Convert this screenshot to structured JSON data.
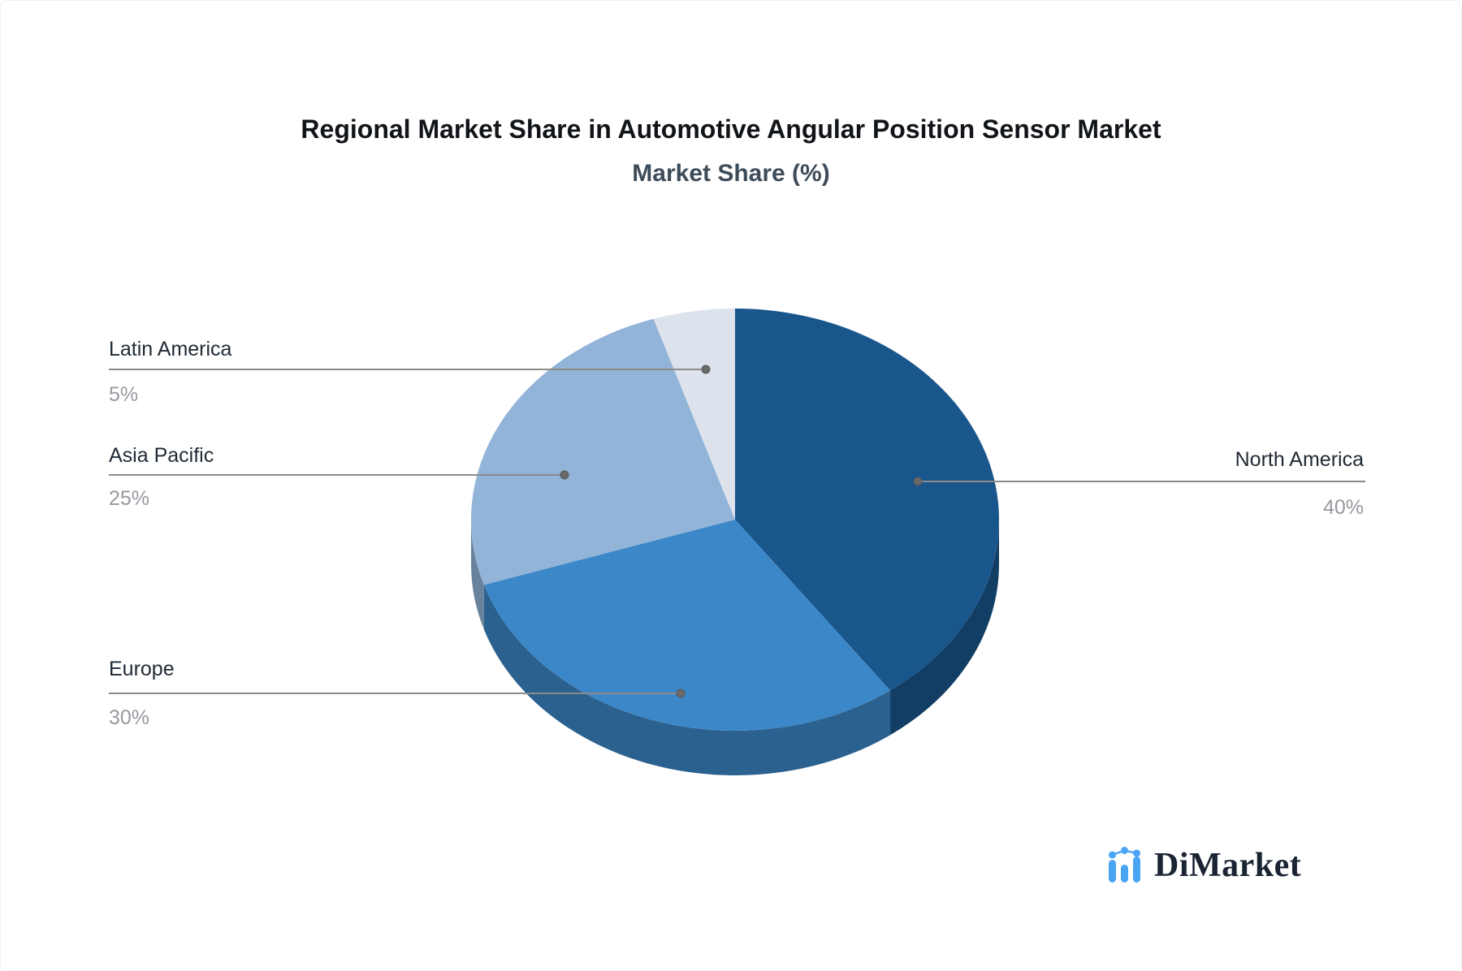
{
  "header": {
    "title": "Regional Market Share in Automotive Angular Position Sensor Market",
    "subtitle": "Market Share (%)"
  },
  "chart_data": {
    "type": "pie",
    "title": "Regional Market Share in Automotive Angular Position Sensor Market",
    "subtitle": "Market Share (%)",
    "unit": "percent",
    "style": "3d",
    "start_angle_deg": 90,
    "direction": "clockwise",
    "legend_position": "callout-labels",
    "slices": [
      {
        "label": "North America",
        "value": 40,
        "display": "40%",
        "color": "#19568C"
      },
      {
        "label": "Europe",
        "value": 30,
        "display": "30%",
        "color": "#3C87C7"
      },
      {
        "label": "Asia Pacific",
        "value": 25,
        "display": "25%",
        "color": "#92B4D8"
      },
      {
        "label": "Latin America",
        "value": 5,
        "display": "5%",
        "color": "#DDE3ED"
      }
    ]
  },
  "branding": {
    "logo_text": "DiMarket",
    "logo_icon": "bar-line-chart-icon",
    "logo_icon_color": "#4AA4F4",
    "logo_text_color": "#1B2433"
  },
  "style": {
    "leader_line_color": "#8B8B8B",
    "leader_dot_color": "#6A6A6A",
    "label_color": "#212B36",
    "percent_color": "#95999F",
    "title_color": "#111418",
    "subtitle_color": "#3E4C59",
    "background": "#FFFFFF"
  }
}
